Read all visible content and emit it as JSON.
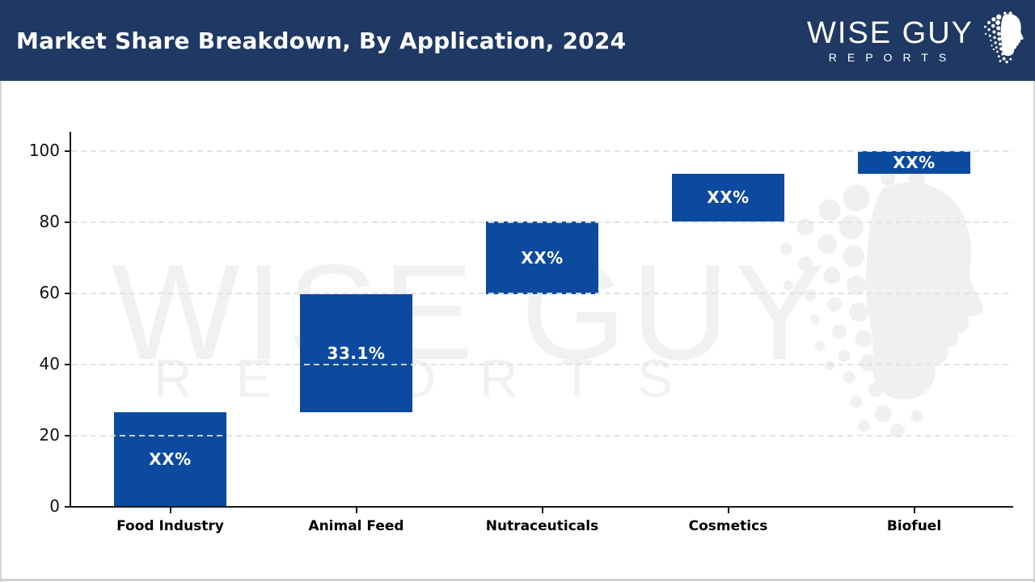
{
  "header": {
    "title": "Market Share Breakdown, By Application, 2024",
    "background_color": "#1f3864",
    "logo": {
      "wordmark": "WISE GUY",
      "subtext": "REPORTS"
    }
  },
  "watermark": {
    "wordmark": "WISE GUY",
    "subtext": "REPORTS"
  },
  "chart_data": {
    "type": "bar",
    "variant": "waterfall",
    "title": "Market Share Breakdown, By Application, 2024",
    "xlabel": "",
    "ylabel": "",
    "ylim": [
      0,
      105
    ],
    "yticks": [
      0,
      20,
      40,
      60,
      80,
      100
    ],
    "grid": {
      "horizontal": true,
      "style": "dashed",
      "color": "#e0e0e0",
      "drawn_over_bars": true
    },
    "legend": "none",
    "bar_color": "#0b4a9f",
    "bar_label_color": "#ffffff",
    "categories": [
      "Food Industry",
      "Animal Feed",
      "Nutraceuticals",
      "Cosmetics",
      "Biofuel"
    ],
    "series": [
      {
        "name": "Market share (%)",
        "segments": [
          {
            "category": "Food Industry",
            "start": 0,
            "end": 26.6,
            "label": "XX%"
          },
          {
            "category": "Animal Feed",
            "start": 26.6,
            "end": 59.7,
            "label": "33.1%"
          },
          {
            "category": "Nutraceuticals",
            "start": 59.7,
            "end": 80.3,
            "label": "XX%"
          },
          {
            "category": "Cosmetics",
            "start": 80.3,
            "end": 93.6,
            "label": "XX%"
          },
          {
            "category": "Biofuel",
            "start": 93.6,
            "end": 100,
            "label": "XX%"
          }
        ]
      }
    ]
  }
}
